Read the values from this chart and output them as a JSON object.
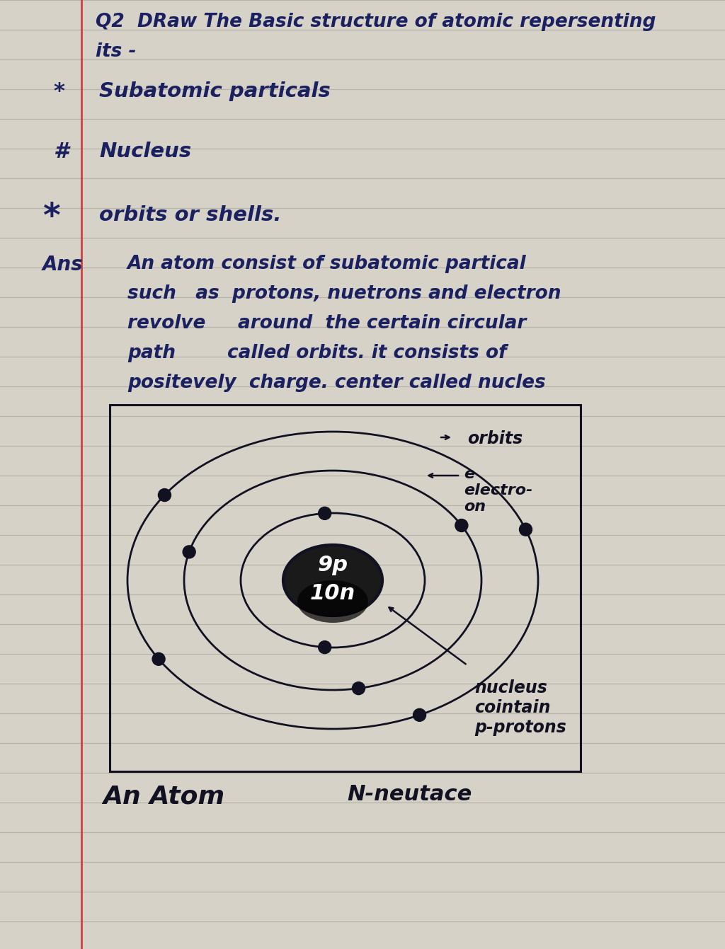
{
  "paper_color": "#d6d2c8",
  "line_color": "#b0aca0",
  "red_margin_color": "#cc3333",
  "ink_color": "#111122",
  "blue_ink": "#1a2060",
  "title_line1": "Q2  DRaw The Basic structure of atomic repersenting",
  "title_line2": "its -",
  "bullet1_sym": "*",
  "bullet1_text": "Subatomic particals",
  "bullet2_sym": "#",
  "bullet2_text": "Nucleus",
  "bullet3_sym": "*",
  "bullet3_text": "orbits or shells.",
  "ans_prefix": "Ans",
  "para_line1": "An atom consist of subatomic partical",
  "para_line2": "such   as  protons, nuetrons and electron",
  "para_line3": "revolve     around  the certain circular",
  "para_line4": "path        called orbits. it consists of",
  "para_line5": "positevely  charge. center called nucles",
  "nucleus_p": "9p",
  "nucleus_n": "10n",
  "orbit_label": "orbits",
  "electron_label": "e\nelectro-\non",
  "annot_nucleus": "nucleus\ncointain\np-protons",
  "bottom_left": "An Atom",
  "bottom_right": "N-neutace"
}
